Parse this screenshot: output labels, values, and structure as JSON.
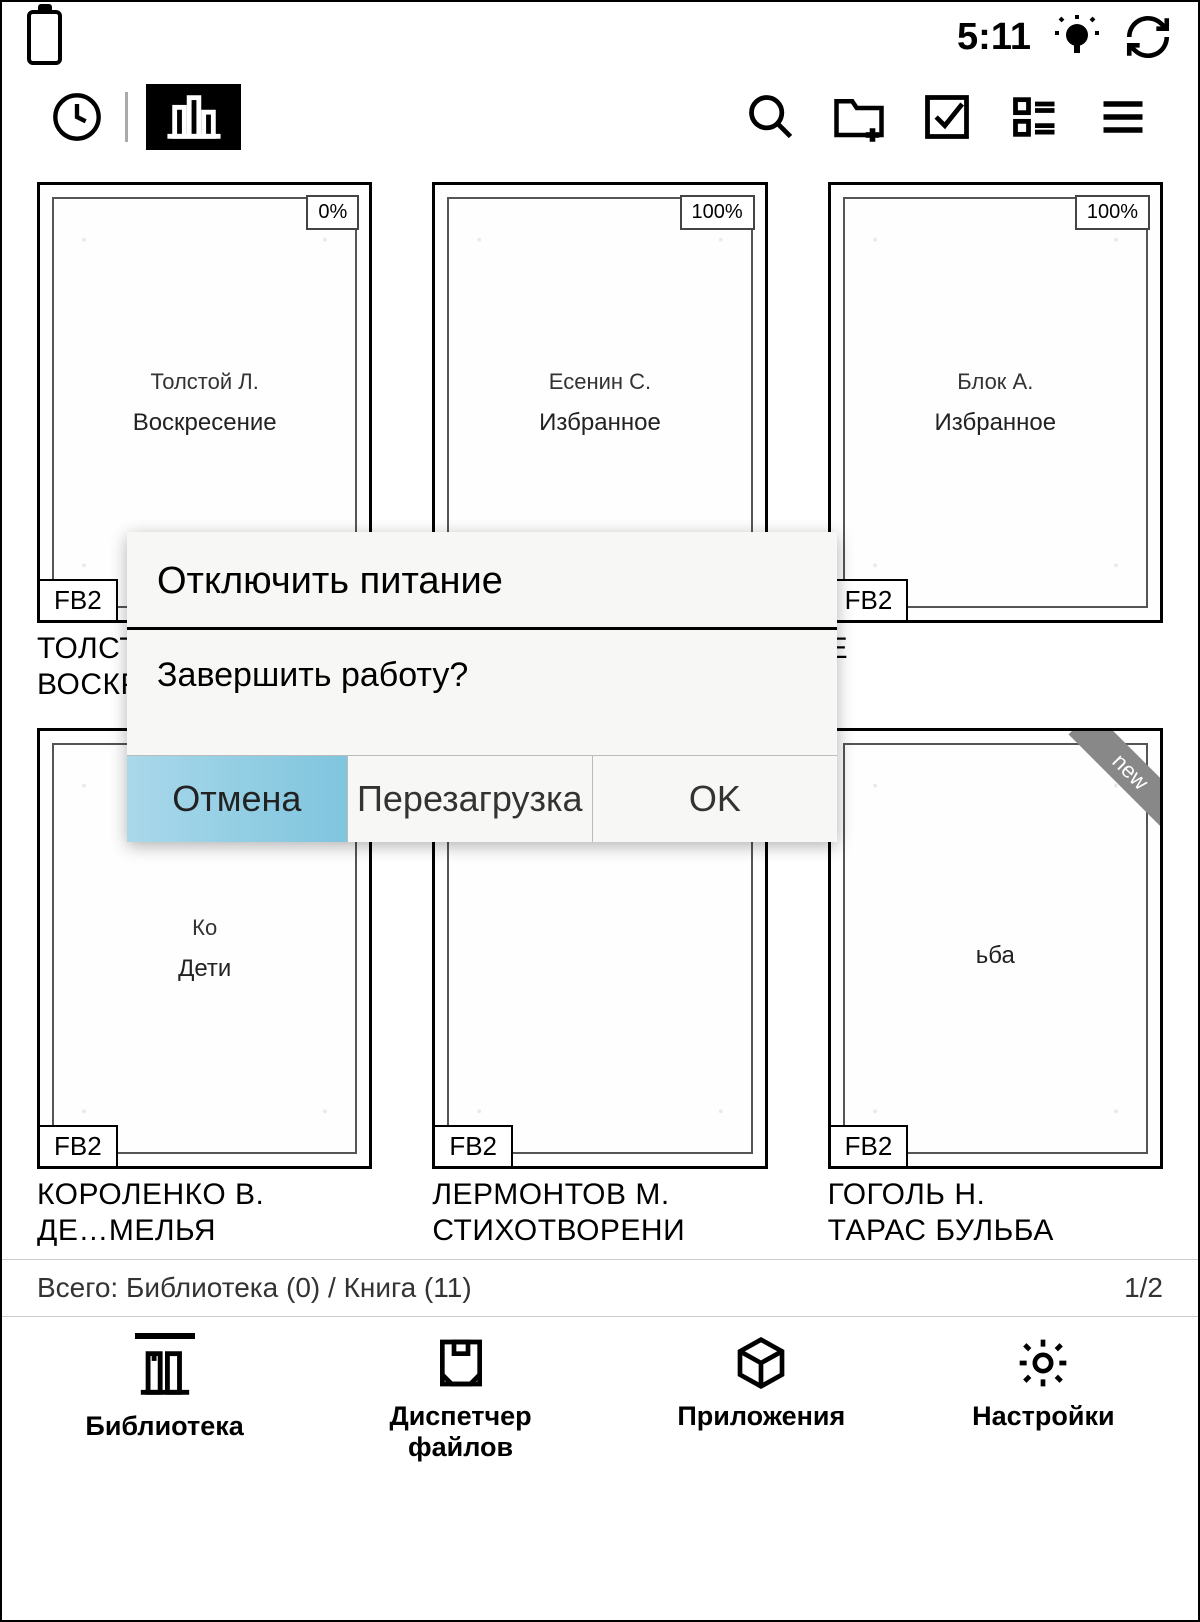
{
  "status": {
    "time": "5:11"
  },
  "books": [
    {
      "author": "Толстой Л.",
      "title": "Воскресение",
      "progress": "0%",
      "format": "FB2",
      "label_line1": "ТОЛСТ",
      "label_line2": "ВОСКР",
      "new": false
    },
    {
      "author": "Есенин С.",
      "title": "Избранное",
      "progress": "100%",
      "format": "FB2",
      "label_line1": "",
      "label_line2": "",
      "new": false
    },
    {
      "author": "Блок А.",
      "title": "Избранное",
      "progress": "100%",
      "format": "FB2",
      "label_line1": "",
      "label_line2": "Е",
      "new": false
    },
    {
      "author": "Ко",
      "title": "Дети",
      "progress": "",
      "format": "FB2",
      "label_line1": "КОРОЛЕНКО В.",
      "label_line2": "ДЕ…МЕЛЬЯ",
      "new": false
    },
    {
      "author": "",
      "title": "",
      "progress": "",
      "format": "FB2",
      "label_line1": "ЛЕРМОНТОВ М.",
      "label_line2": "СТИХОТВОРЕНИ",
      "new": false
    },
    {
      "author": "",
      "title": "ьба",
      "progress": "",
      "format": "FB2",
      "label_line1": "ГОГОЛЬ Н.",
      "label_line2": "ТАРАС БУЛЬБА",
      "new": true
    }
  ],
  "summary": {
    "left": "Всего: Библиотека (0) / Книга (11)",
    "right": "1/2"
  },
  "nav": {
    "library": "Библиотека",
    "files": "Диспетчер файлов",
    "apps": "Приложения",
    "settings": "Настройки"
  },
  "dialog": {
    "title": "Отключить питание",
    "message": "Завершить работу?",
    "cancel": "Отмена",
    "reboot": "Перезагрузка",
    "ok": "OK"
  },
  "new_label": "new",
  "colors": {
    "highlight": "#8ecde0",
    "bg": "#ffffff",
    "text": "#000000"
  }
}
